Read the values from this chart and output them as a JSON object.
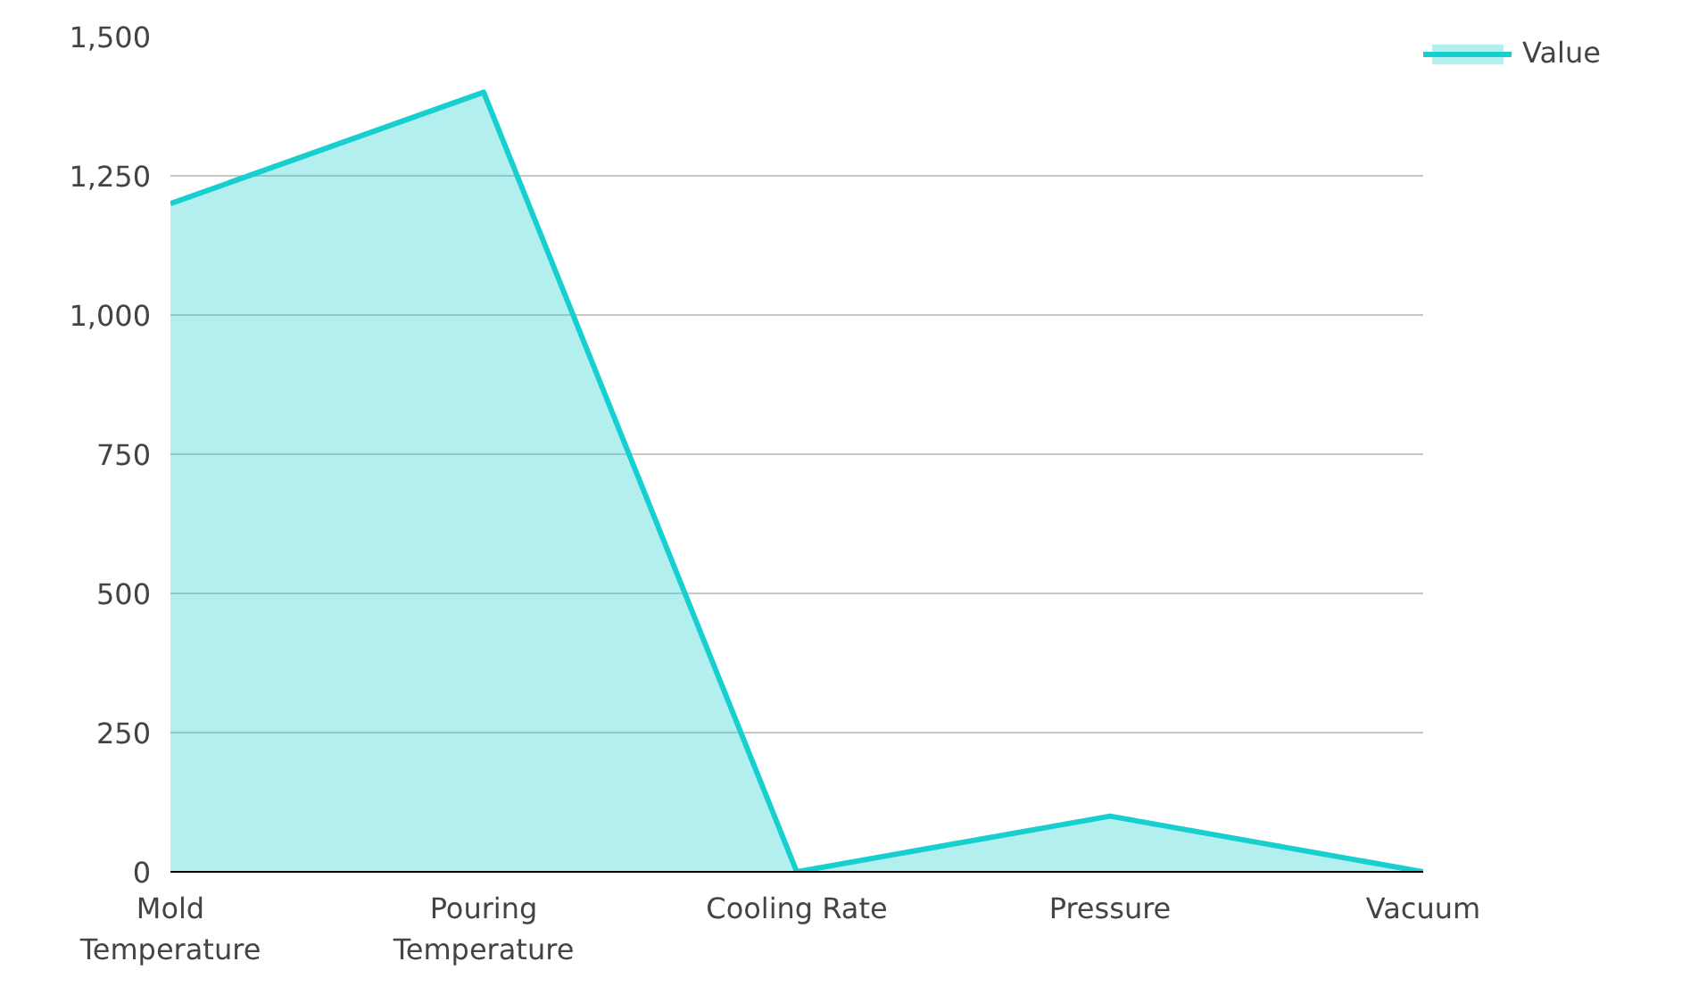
{
  "chart_data": {
    "type": "area",
    "categories": [
      "Mold Temperature",
      "Pouring Temperature",
      "Cooling Rate",
      "Pressure",
      "Vacuum"
    ],
    "series": [
      {
        "name": "Value",
        "color": "#17cfcf",
        "values": [
          1200,
          1400,
          0,
          100,
          0
        ]
      }
    ],
    "ylim": [
      0,
      1500
    ],
    "yticks": [
      0,
      {
        "value": 250,
        "label": "250"
      },
      {
        "value": 500,
        "label": "500"
      },
      {
        "value": 750,
        "label": "750"
      },
      {
        "value": 1000,
        "label": "1,000"
      },
      {
        "value": 1250,
        "label": "1,250"
      },
      {
        "value": 1500,
        "label": "1,500"
      }
    ],
    "grid": "y",
    "legend": "top right"
  }
}
